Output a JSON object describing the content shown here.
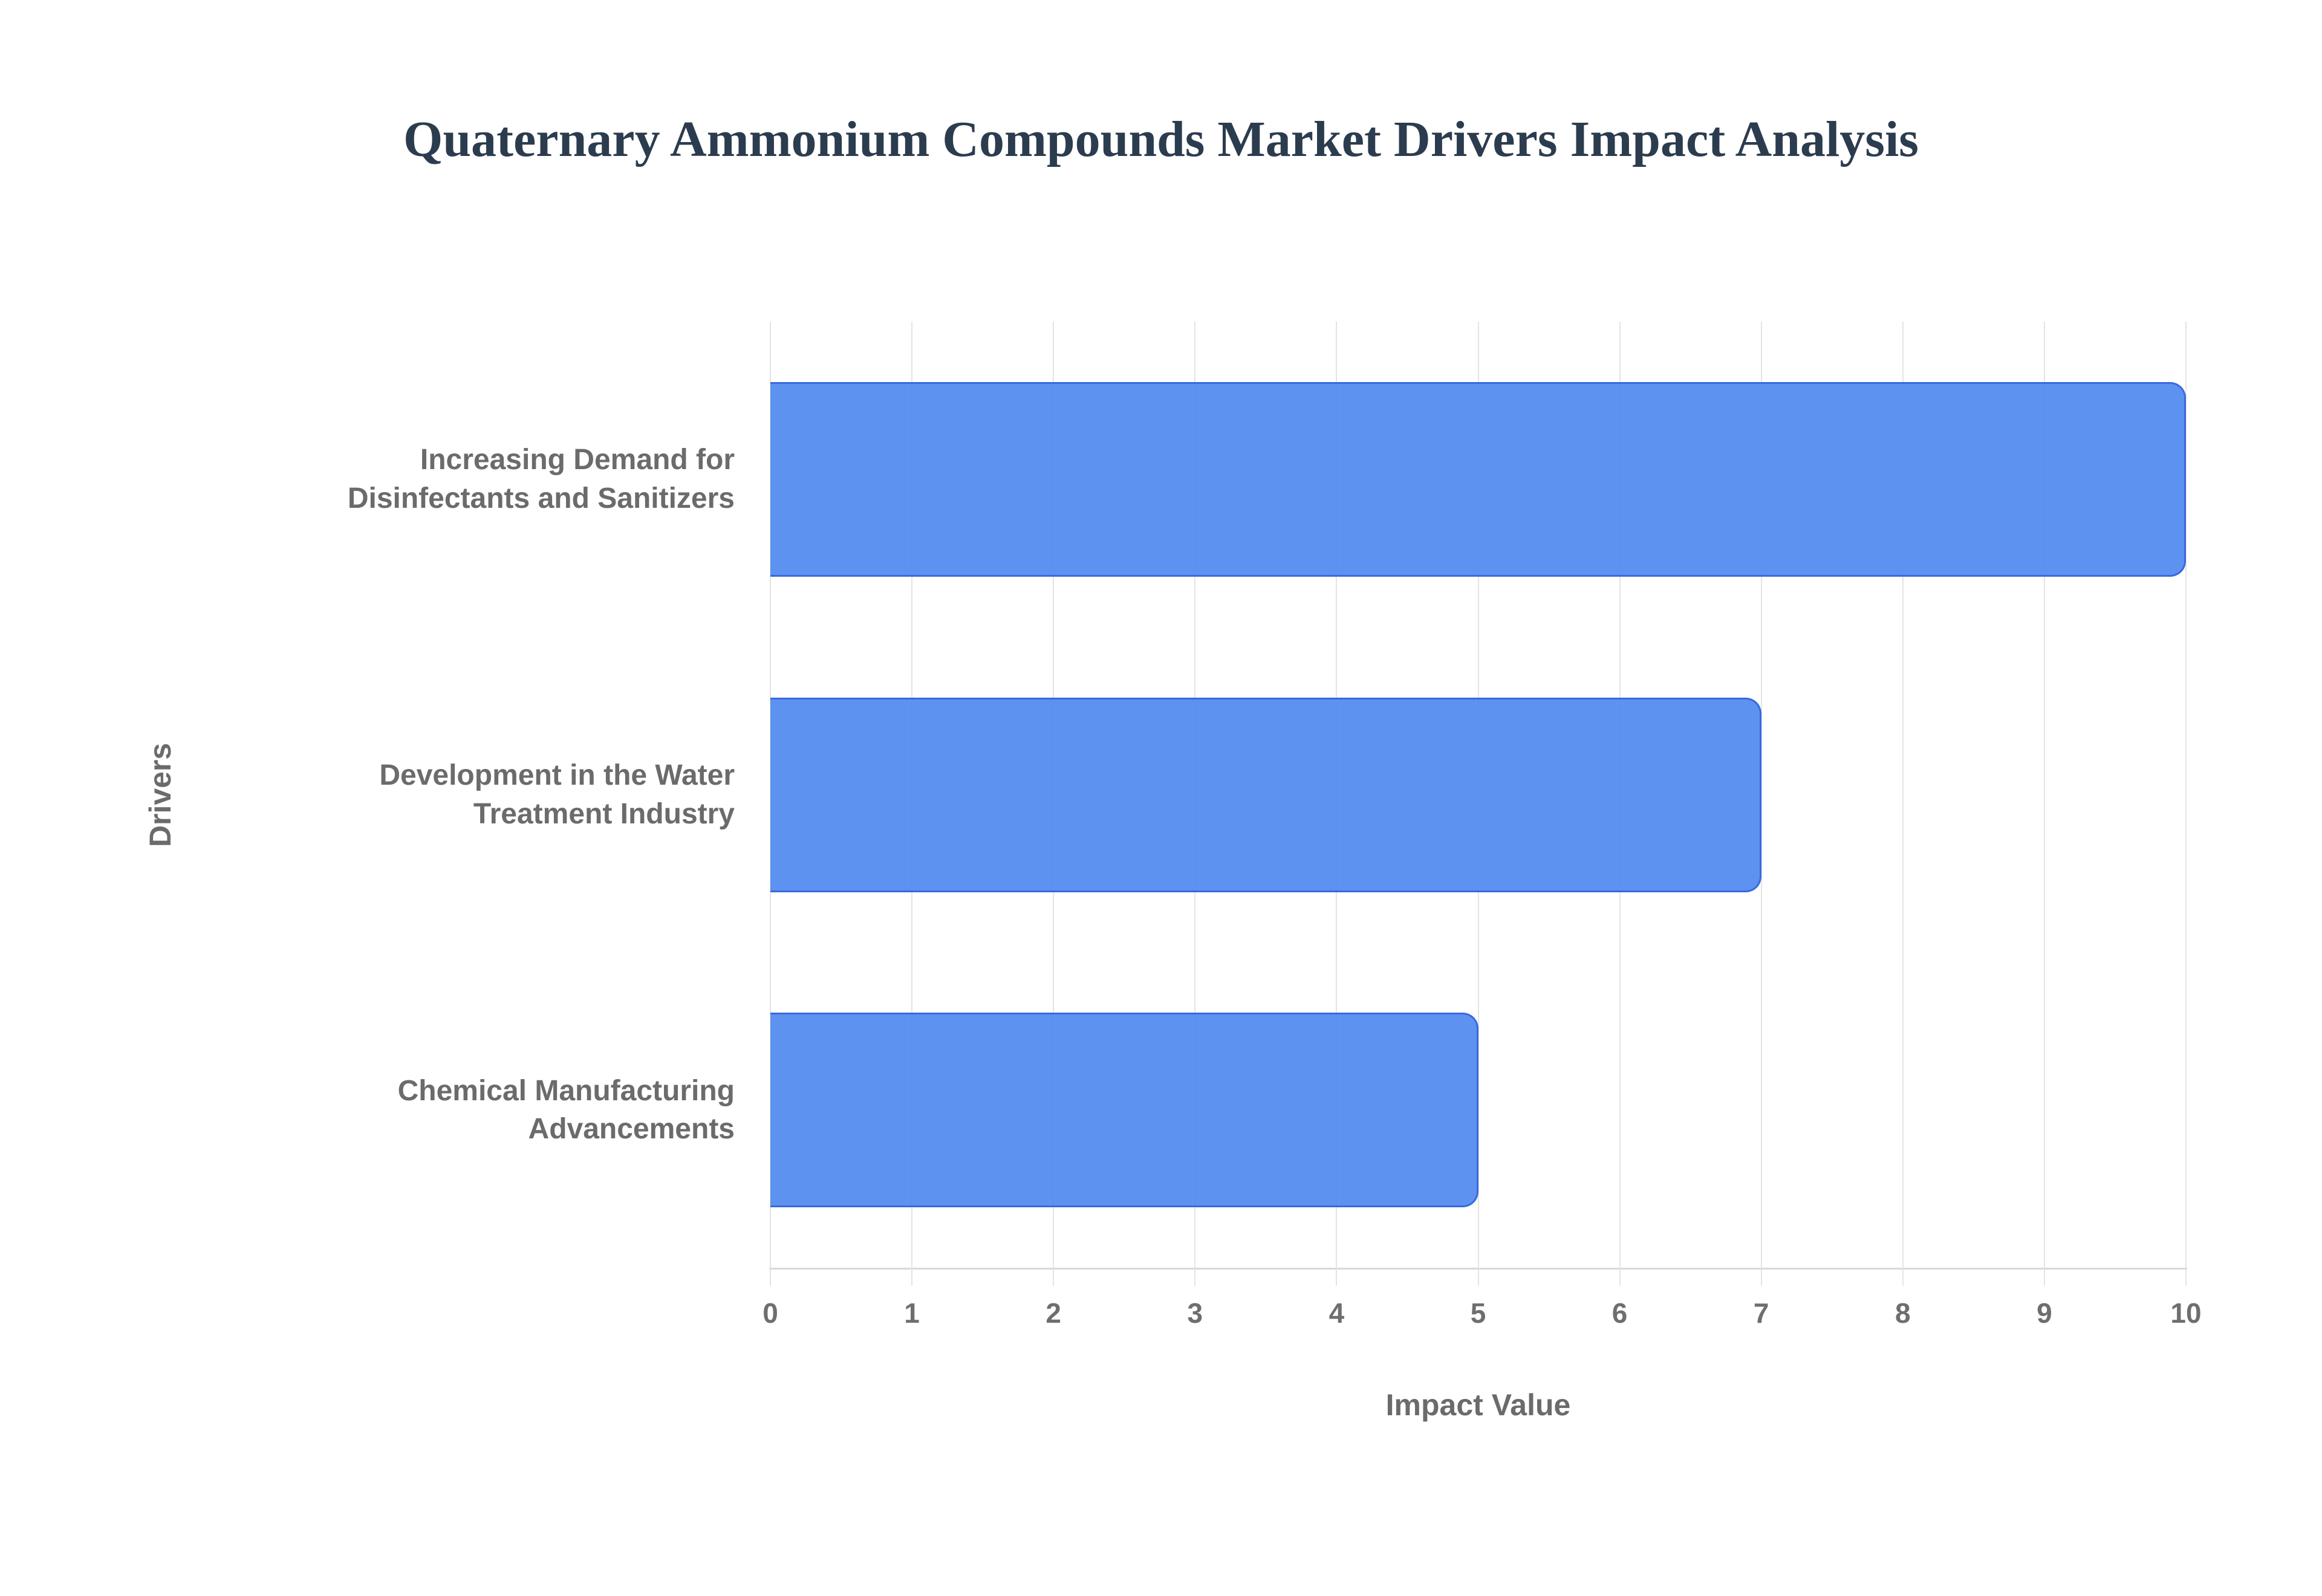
{
  "title": {
    "text": "Quaternary Ammonium Compounds Market Drivers Impact Analysis",
    "color": "#2c3c4f"
  },
  "chart_data": {
    "type": "bar",
    "orientation": "horizontal",
    "title": "Quaternary Ammonium Compounds Market Drivers Impact Analysis",
    "categories": [
      "Increasing Demand for Disinfectants and Sanitizers",
      "Development in the Water Treatment Industry",
      "Chemical Manufacturing Advancements"
    ],
    "values": [
      10,
      7,
      5
    ],
    "xlabel": "Impact Value",
    "ylabel": "Drivers",
    "xlim": [
      0,
      10
    ],
    "xticks": [
      0,
      1,
      2,
      3,
      4,
      5,
      6,
      7,
      8,
      9,
      10
    ],
    "grid": true,
    "legend": false,
    "bar_color": "#5E93F1",
    "bar_border_color": "#3969e0",
    "gridline_color": "#e4e4e4",
    "axis_line_color": "#d8d8d8",
    "label_color": "#6b6b6b",
    "tick_label_color": "#6e6e6e"
  }
}
